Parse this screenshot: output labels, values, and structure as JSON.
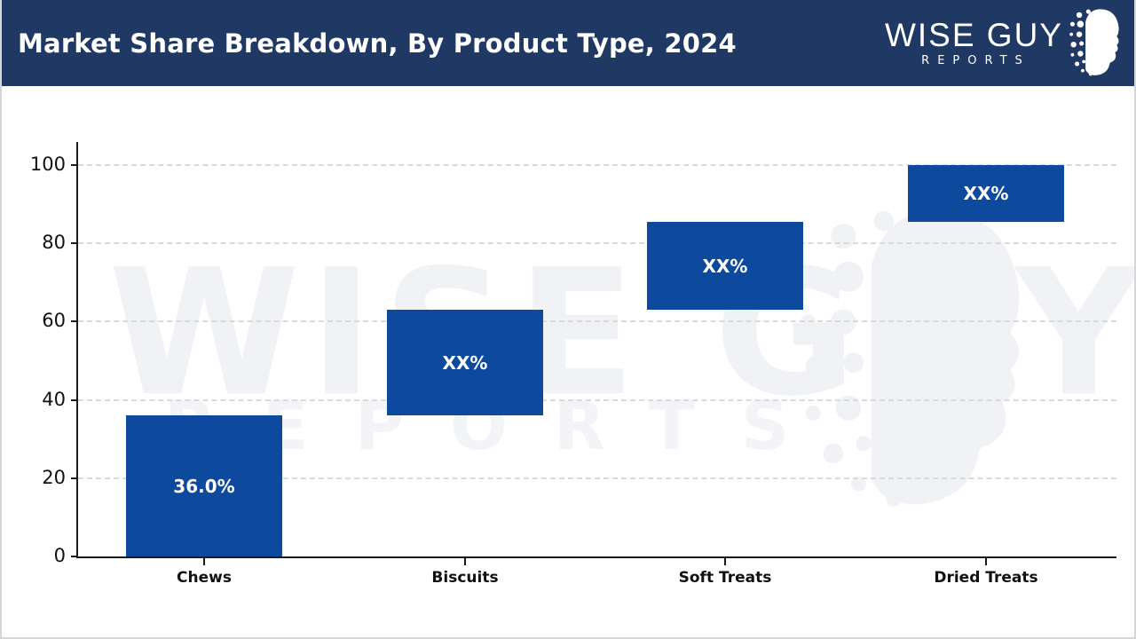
{
  "header": {
    "title": "Market Share Breakdown, By Product Type, 2024",
    "bg_color": "#1f3864",
    "logo": {
      "line1": "WISE GUY",
      "line2": "REPORTS"
    }
  },
  "watermark": {
    "line1": "WISE GUY",
    "line2": "REPORTS"
  },
  "chart_data": {
    "type": "bar",
    "subtype": "waterfall",
    "title": "Market Share Breakdown, By Product Type, 2024",
    "categories": [
      "Chews",
      "Biscuits",
      "Soft Treats",
      "Dried Treats"
    ],
    "segments": [
      {
        "category": "Chews",
        "start": 0,
        "end": 36,
        "label": "36.0%"
      },
      {
        "category": "Biscuits",
        "start": 36,
        "end": 63,
        "label": "XX%"
      },
      {
        "category": "Soft Treats",
        "start": 63,
        "end": 85.5,
        "label": "XX%"
      },
      {
        "category": "Dried Treats",
        "start": 85.5,
        "end": 100,
        "label": "XX%"
      }
    ],
    "values": [
      36,
      27,
      22.5,
      14.5
    ],
    "labels": [
      "36.0%",
      "XX%",
      "XX%",
      "XX%"
    ],
    "ylim": [
      0,
      100
    ],
    "yticks": [
      0,
      20,
      40,
      60,
      80,
      100
    ],
    "xlabel": "",
    "ylabel": "",
    "grid": "horizontal-dashed",
    "bar_color": "#0d4a9e",
    "label_color": "#ffffff",
    "legend": "none"
  }
}
